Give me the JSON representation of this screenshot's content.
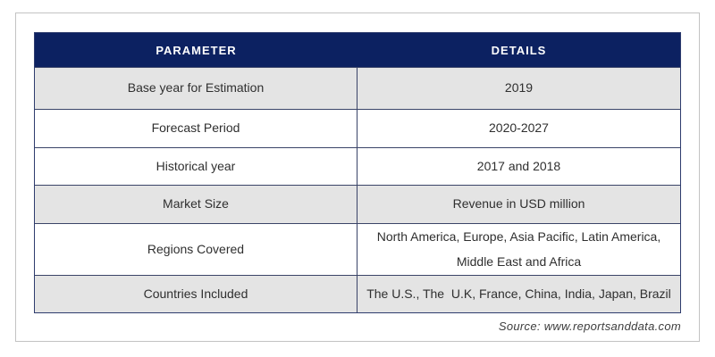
{
  "table": {
    "headers": {
      "parameter": "PARAMETER",
      "details": "DETAILS"
    },
    "rows": [
      {
        "parameter": "Base year for Estimation",
        "details": "2019"
      },
      {
        "parameter": "Forecast Period",
        "details": "2020-2027"
      },
      {
        "parameter": "Historical year",
        "details": "2017 and 2018"
      },
      {
        "parameter": "Market Size",
        "details": "Revenue in USD million"
      },
      {
        "parameter": "Regions Covered",
        "details": "North America, Europe, Asia Pacific, Latin America, Middle East and Africa"
      },
      {
        "parameter": "Countries Included",
        "details": "The U.S., The  U.K, France, China, India, Japan, Brazil"
      }
    ]
  },
  "source": {
    "label": "Source: www.reportsanddata.com"
  },
  "colors": {
    "header_bg": "#0c2161",
    "row_shaded": "#e4e4e4",
    "border_navy": "#2e3c6e",
    "card_border": "#c3c3c3",
    "text_dark": "#2f2f2f"
  },
  "chart_data": {
    "type": "table",
    "title": "",
    "columns": [
      "PARAMETER",
      "DETAILS"
    ],
    "rows": [
      [
        "Base year for Estimation",
        "2019"
      ],
      [
        "Forecast Period",
        "2020-2027"
      ],
      [
        "Historical year",
        "2017 and 2018"
      ],
      [
        "Market Size",
        "Revenue in USD million"
      ],
      [
        "Regions Covered",
        "North America, Europe, Asia Pacific, Latin America, Middle East and Africa"
      ],
      [
        "Countries Included",
        "The U.S., The  U.K, France, China, India, Japan, Brazil"
      ]
    ],
    "source": "Source: www.reportsanddata.com",
    "layout_hints": {
      "header_style": "navy background, white uppercase text, centered",
      "shaded_row_indices": [
        0,
        3,
        5
      ],
      "column_split": "50/50"
    }
  }
}
